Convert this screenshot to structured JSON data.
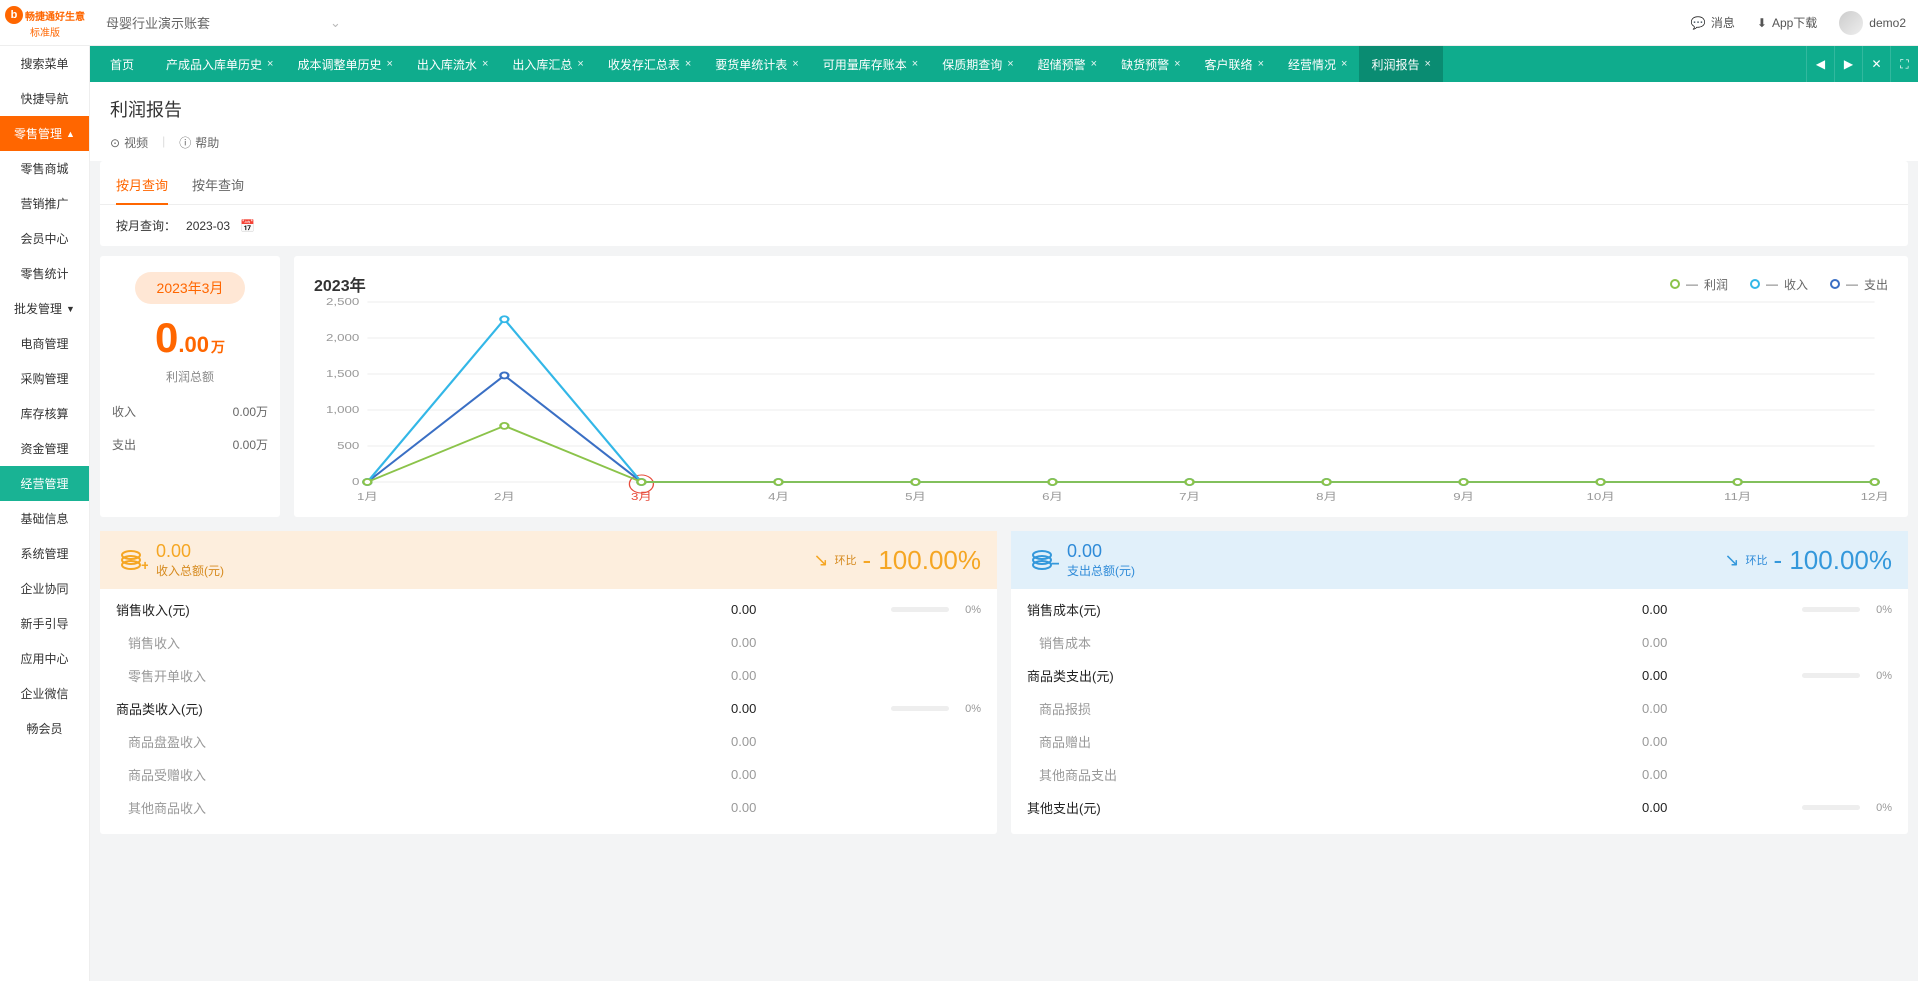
{
  "top": {
    "logo_main": "畅捷通好生意",
    "logo_sub": "标准版",
    "biz": "母婴行业演示账套",
    "msg": "消息",
    "app": "App下载",
    "user": "demo2"
  },
  "sidebar": {
    "items": [
      {
        "label": "搜索菜单"
      },
      {
        "label": "快捷导航"
      },
      {
        "label": "零售管理",
        "kind": "orange",
        "arrow": "▲"
      },
      {
        "label": "零售商城"
      },
      {
        "label": "营销推广"
      },
      {
        "label": "会员中心"
      },
      {
        "label": "零售统计"
      },
      {
        "label": "批发管理",
        "arrow": "▼"
      },
      {
        "label": "电商管理"
      },
      {
        "label": "采购管理"
      },
      {
        "label": "库存核算"
      },
      {
        "label": "资金管理"
      },
      {
        "label": "经营管理",
        "kind": "teal-active"
      },
      {
        "label": "基础信息"
      },
      {
        "label": "系统管理"
      },
      {
        "label": "企业协同"
      },
      {
        "label": "新手引导"
      },
      {
        "label": "应用中心"
      },
      {
        "label": "企业微信"
      },
      {
        "label": "畅会员"
      }
    ]
  },
  "tabs": [
    {
      "label": "首页",
      "home": true
    },
    {
      "label": "产成品入库单历史",
      "close": true
    },
    {
      "label": "成本调整单历史",
      "close": true
    },
    {
      "label": "出入库流水",
      "close": true
    },
    {
      "label": "出入库汇总",
      "close": true
    },
    {
      "label": "收发存汇总表",
      "close": true
    },
    {
      "label": "要货单统计表",
      "close": true
    },
    {
      "label": "可用量库存账本",
      "close": true
    },
    {
      "label": "保质期查询",
      "close": true
    },
    {
      "label": "超储预警",
      "close": true
    },
    {
      "label": "缺货预警",
      "close": true
    },
    {
      "label": "客户联络",
      "close": true
    },
    {
      "label": "经营情况",
      "close": true
    },
    {
      "label": "利润报告",
      "close": true,
      "active": true
    }
  ],
  "page": {
    "title": "利润报告",
    "help_video": "视频",
    "help_doc": "帮助",
    "qtabs": [
      "按月查询",
      "按年查询"
    ],
    "qtab_active": 0,
    "query_label": "按月查询：",
    "query_value": "2023-03"
  },
  "summary": {
    "period": "2023年3月",
    "big_int": "0",
    "big_dec": ".00",
    "big_unit": "万",
    "big_label": "利润总额",
    "rows": [
      {
        "k": "收入",
        "v": "0.00万"
      },
      {
        "k": "支出",
        "v": "0.00万"
      }
    ]
  },
  "chart": {
    "title": "2023年",
    "legend": [
      {
        "label": "利润",
        "color": "#8bc34a"
      },
      {
        "label": "收入",
        "color": "#33b7e7"
      },
      {
        "label": "支出",
        "color": "#3a6fc4"
      }
    ],
    "categories": [
      "1月",
      "2月",
      "3月",
      "4月",
      "5月",
      "6月",
      "7月",
      "8月",
      "9月",
      "10月",
      "11月",
      "12月"
    ],
    "active_x": 2,
    "x_active_color": "#e74c3c",
    "ylim": [
      0,
      2500
    ],
    "ytick_step": 500,
    "series": {
      "profit": [
        0,
        780,
        0,
        0,
        0,
        0,
        0,
        0,
        0,
        0,
        0,
        0
      ],
      "income": [
        0,
        2260,
        0,
        0,
        0,
        0,
        0,
        0,
        0,
        0,
        0,
        0
      ],
      "expense": [
        0,
        1480,
        0,
        0,
        0,
        0,
        0,
        0,
        0,
        0,
        0,
        0
      ]
    },
    "colors": {
      "profit": "#8bc34a",
      "income": "#33b7e7",
      "expense": "#3a6fc4",
      "grid": "#eeeeee",
      "axis_text": "#999999"
    }
  },
  "panels": {
    "left": {
      "value": "0.00",
      "label": "收入总额(元)",
      "trend_label": "环比",
      "delta": "- 100.00%",
      "rows": [
        {
          "name": "销售收入(元)",
          "val": "0.00",
          "pct": "0%",
          "head": true
        },
        {
          "name": "销售收入",
          "val": "0.00"
        },
        {
          "name": "零售开单收入",
          "val": "0.00"
        },
        {
          "name": "商品类收入(元)",
          "val": "0.00",
          "pct": "0%",
          "head": true
        },
        {
          "name": "商品盘盈收入",
          "val": "0.00"
        },
        {
          "name": "商品受赠收入",
          "val": "0.00"
        },
        {
          "name": "其他商品收入",
          "val": "0.00"
        }
      ]
    },
    "right": {
      "value": "0.00",
      "label": "支出总额(元)",
      "trend_label": "环比",
      "delta": "- 100.00%",
      "rows": [
        {
          "name": "销售成本(元)",
          "val": "0.00",
          "pct": "0%",
          "head": true
        },
        {
          "name": "销售成本",
          "val": "0.00"
        },
        {
          "name": "商品类支出(元)",
          "val": "0.00",
          "pct": "0%",
          "head": true
        },
        {
          "name": "商品报损",
          "val": "0.00"
        },
        {
          "name": "商品赠出",
          "val": "0.00"
        },
        {
          "name": "其他商品支出",
          "val": "0.00"
        },
        {
          "name": "其他支出(元)",
          "val": "0.00",
          "pct": "0%",
          "head": true
        }
      ]
    }
  }
}
